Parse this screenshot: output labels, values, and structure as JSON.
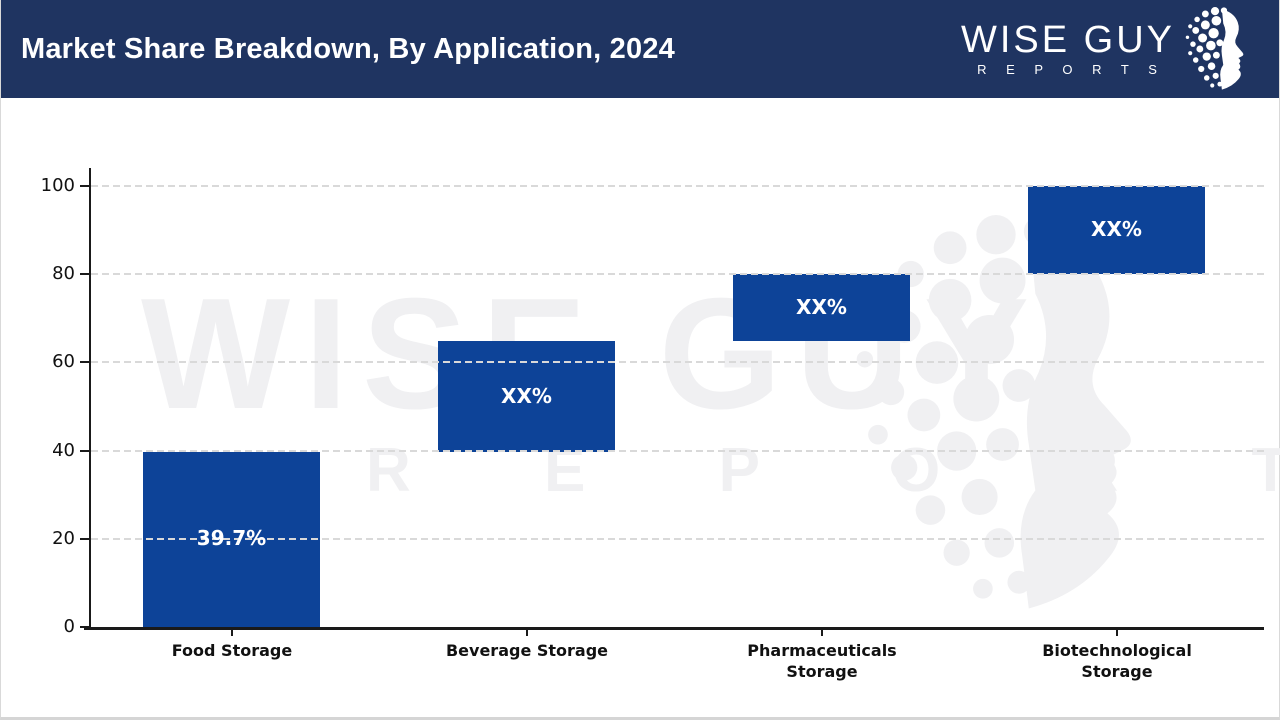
{
  "header": {
    "title": "Market Share Breakdown, By Application, 2024",
    "brand": {
      "line1": "WISE GUY",
      "line2": "R E P O R T S"
    },
    "bg_color": "#1f3461"
  },
  "watermark": {
    "line1": "WISE GUY",
    "line2": "R E P O R T S"
  },
  "chart_data": {
    "type": "bar",
    "subtype": "waterfall",
    "title": "Market Share Breakdown, By Application, 2024",
    "categories": [
      "Food Storage",
      "Beverage Storage",
      "Pharmaceuticals\nStorage",
      "Biotechnological\nStorage"
    ],
    "segments": [
      {
        "category": "Food Storage",
        "start": 0,
        "end": 39.7,
        "label": "39.7%"
      },
      {
        "category": "Beverage Storage",
        "start": 39.7,
        "end": 64.8,
        "label": "XX%"
      },
      {
        "category": "Pharmaceuticals Storage",
        "start": 64.8,
        "end": 80.0,
        "label": "XX%"
      },
      {
        "category": "Biotechnological Storage",
        "start": 80.0,
        "end": 100,
        "label": "XX%"
      }
    ],
    "yticks": [
      0,
      20,
      40,
      60,
      80,
      100
    ],
    "ylim": [
      0,
      100
    ],
    "grid": "horizontal-dashed",
    "legend": "none",
    "bar_color": "#0d4398",
    "bar_label_color": "#ffffff",
    "axis_color": "#1a1a1a"
  }
}
